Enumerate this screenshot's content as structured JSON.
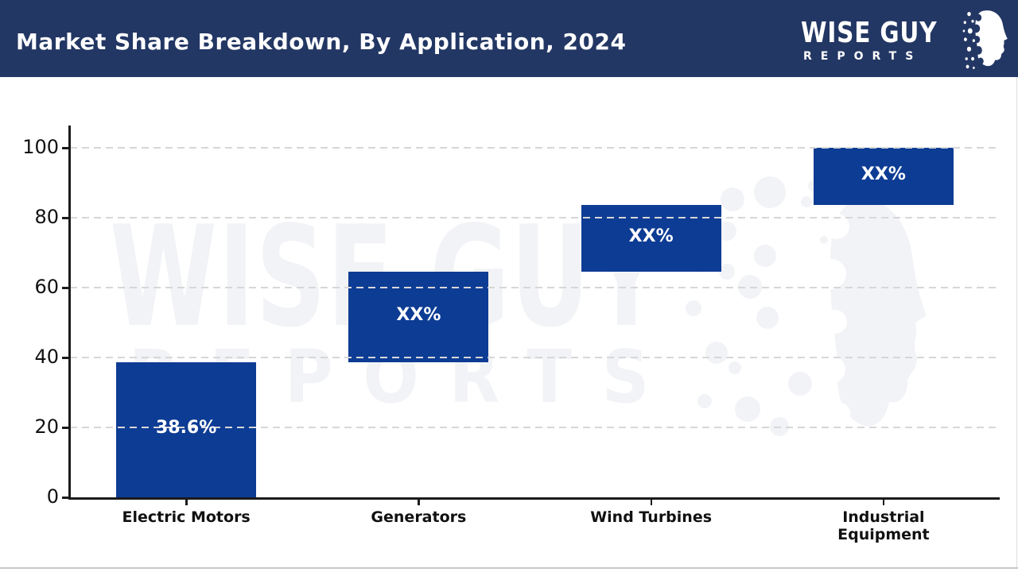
{
  "header": {
    "title": "Market Share Breakdown, By Application, 2024",
    "logo": {
      "wordmark": "WISE GUY",
      "submark": "REPORTS"
    }
  },
  "watermark": {
    "wordmark": "WISE GUY",
    "submark": "REPORTS"
  },
  "chart_data": {
    "type": "bar",
    "variant": "waterfall",
    "title": "Market Share Breakdown, By Application, 2024",
    "categories": [
      "Electric Motors",
      "Generators",
      "Wind Turbines",
      "Industrial Equipment"
    ],
    "segments": [
      {
        "label": "38.6%",
        "start": 0,
        "end": 38.6
      },
      {
        "label": "XX%",
        "start": 38.6,
        "end": 64.5
      },
      {
        "label": "XX%",
        "start": 64.5,
        "end": 83.7
      },
      {
        "label": "XX%",
        "start": 83.7,
        "end": 100
      }
    ],
    "yticks": [
      0,
      20,
      40,
      60,
      80,
      100
    ],
    "ylim": [
      0,
      100
    ],
    "grid": "horizontal-dashed",
    "legend": "none",
    "colors": {
      "bar": "#0d3c94",
      "bar_label": "#ffffff",
      "grid": "#d7d7d7",
      "axis": "#1b1b1b",
      "tick_label": "#111111"
    }
  },
  "colors": {
    "header_bg": "#233764",
    "page_bg": "#ffffff",
    "watermark": "#f2f3f6",
    "bottom_rule": "#c9c9c9"
  }
}
